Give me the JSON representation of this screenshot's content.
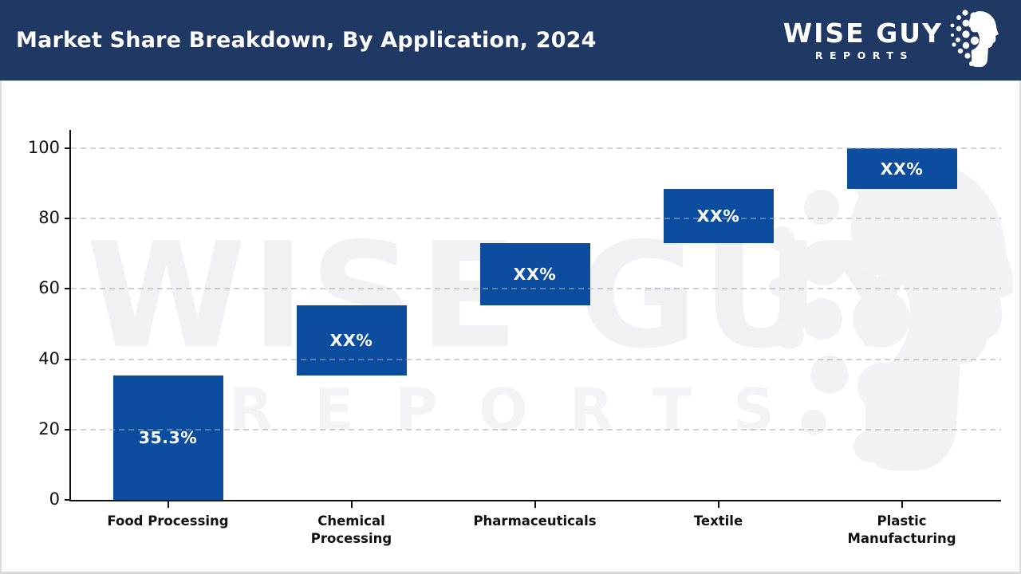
{
  "header": {
    "title": "Market Share Breakdown, By Application, 2024",
    "bg_color": "#203864",
    "logo": {
      "name": "WISE GUY",
      "tagline": "REPORTS"
    }
  },
  "watermark": {
    "line1": "WISE GUY",
    "line2": "REPORTS"
  },
  "chart_data": {
    "type": "bar",
    "subtype": "waterfall",
    "title": "Market Share Breakdown, By Application, 2024",
    "categories": [
      "Food Processing",
      "Chemical Processing",
      "Pharmaceuticals",
      "Textile",
      "Plastic Manufacturing"
    ],
    "tick_labels": [
      "Food Processing",
      "Chemical\nProcessing",
      "Pharmaceuticals",
      "Textile",
      "Plastic\nManufacturing"
    ],
    "segments": [
      {
        "category": "Food Processing",
        "start": 0,
        "end": 35.3,
        "value": 35.3,
        "label": "35.3%"
      },
      {
        "category": "Chemical Processing",
        "start": 35.3,
        "end": 55.3,
        "value": 20.0,
        "label": "XX%"
      },
      {
        "category": "Pharmaceuticals",
        "start": 55.3,
        "end": 73.0,
        "value": 17.7,
        "label": "XX%"
      },
      {
        "category": "Textile",
        "start": 73.0,
        "end": 88.3,
        "value": 15.3,
        "label": "XX%"
      },
      {
        "category": "Plastic Manufacturing",
        "start": 88.3,
        "end": 100.0,
        "value": 11.7,
        "label": "XX%"
      }
    ],
    "yticks": [
      0,
      20,
      40,
      60,
      80,
      100
    ],
    "ylim": [
      0,
      105
    ],
    "grid": "dashed horizontal, drawn above bars",
    "legend": "none",
    "bar_color": "#0d4da0",
    "bar_label_color": "#ffffff",
    "axis_color": "#101010"
  }
}
